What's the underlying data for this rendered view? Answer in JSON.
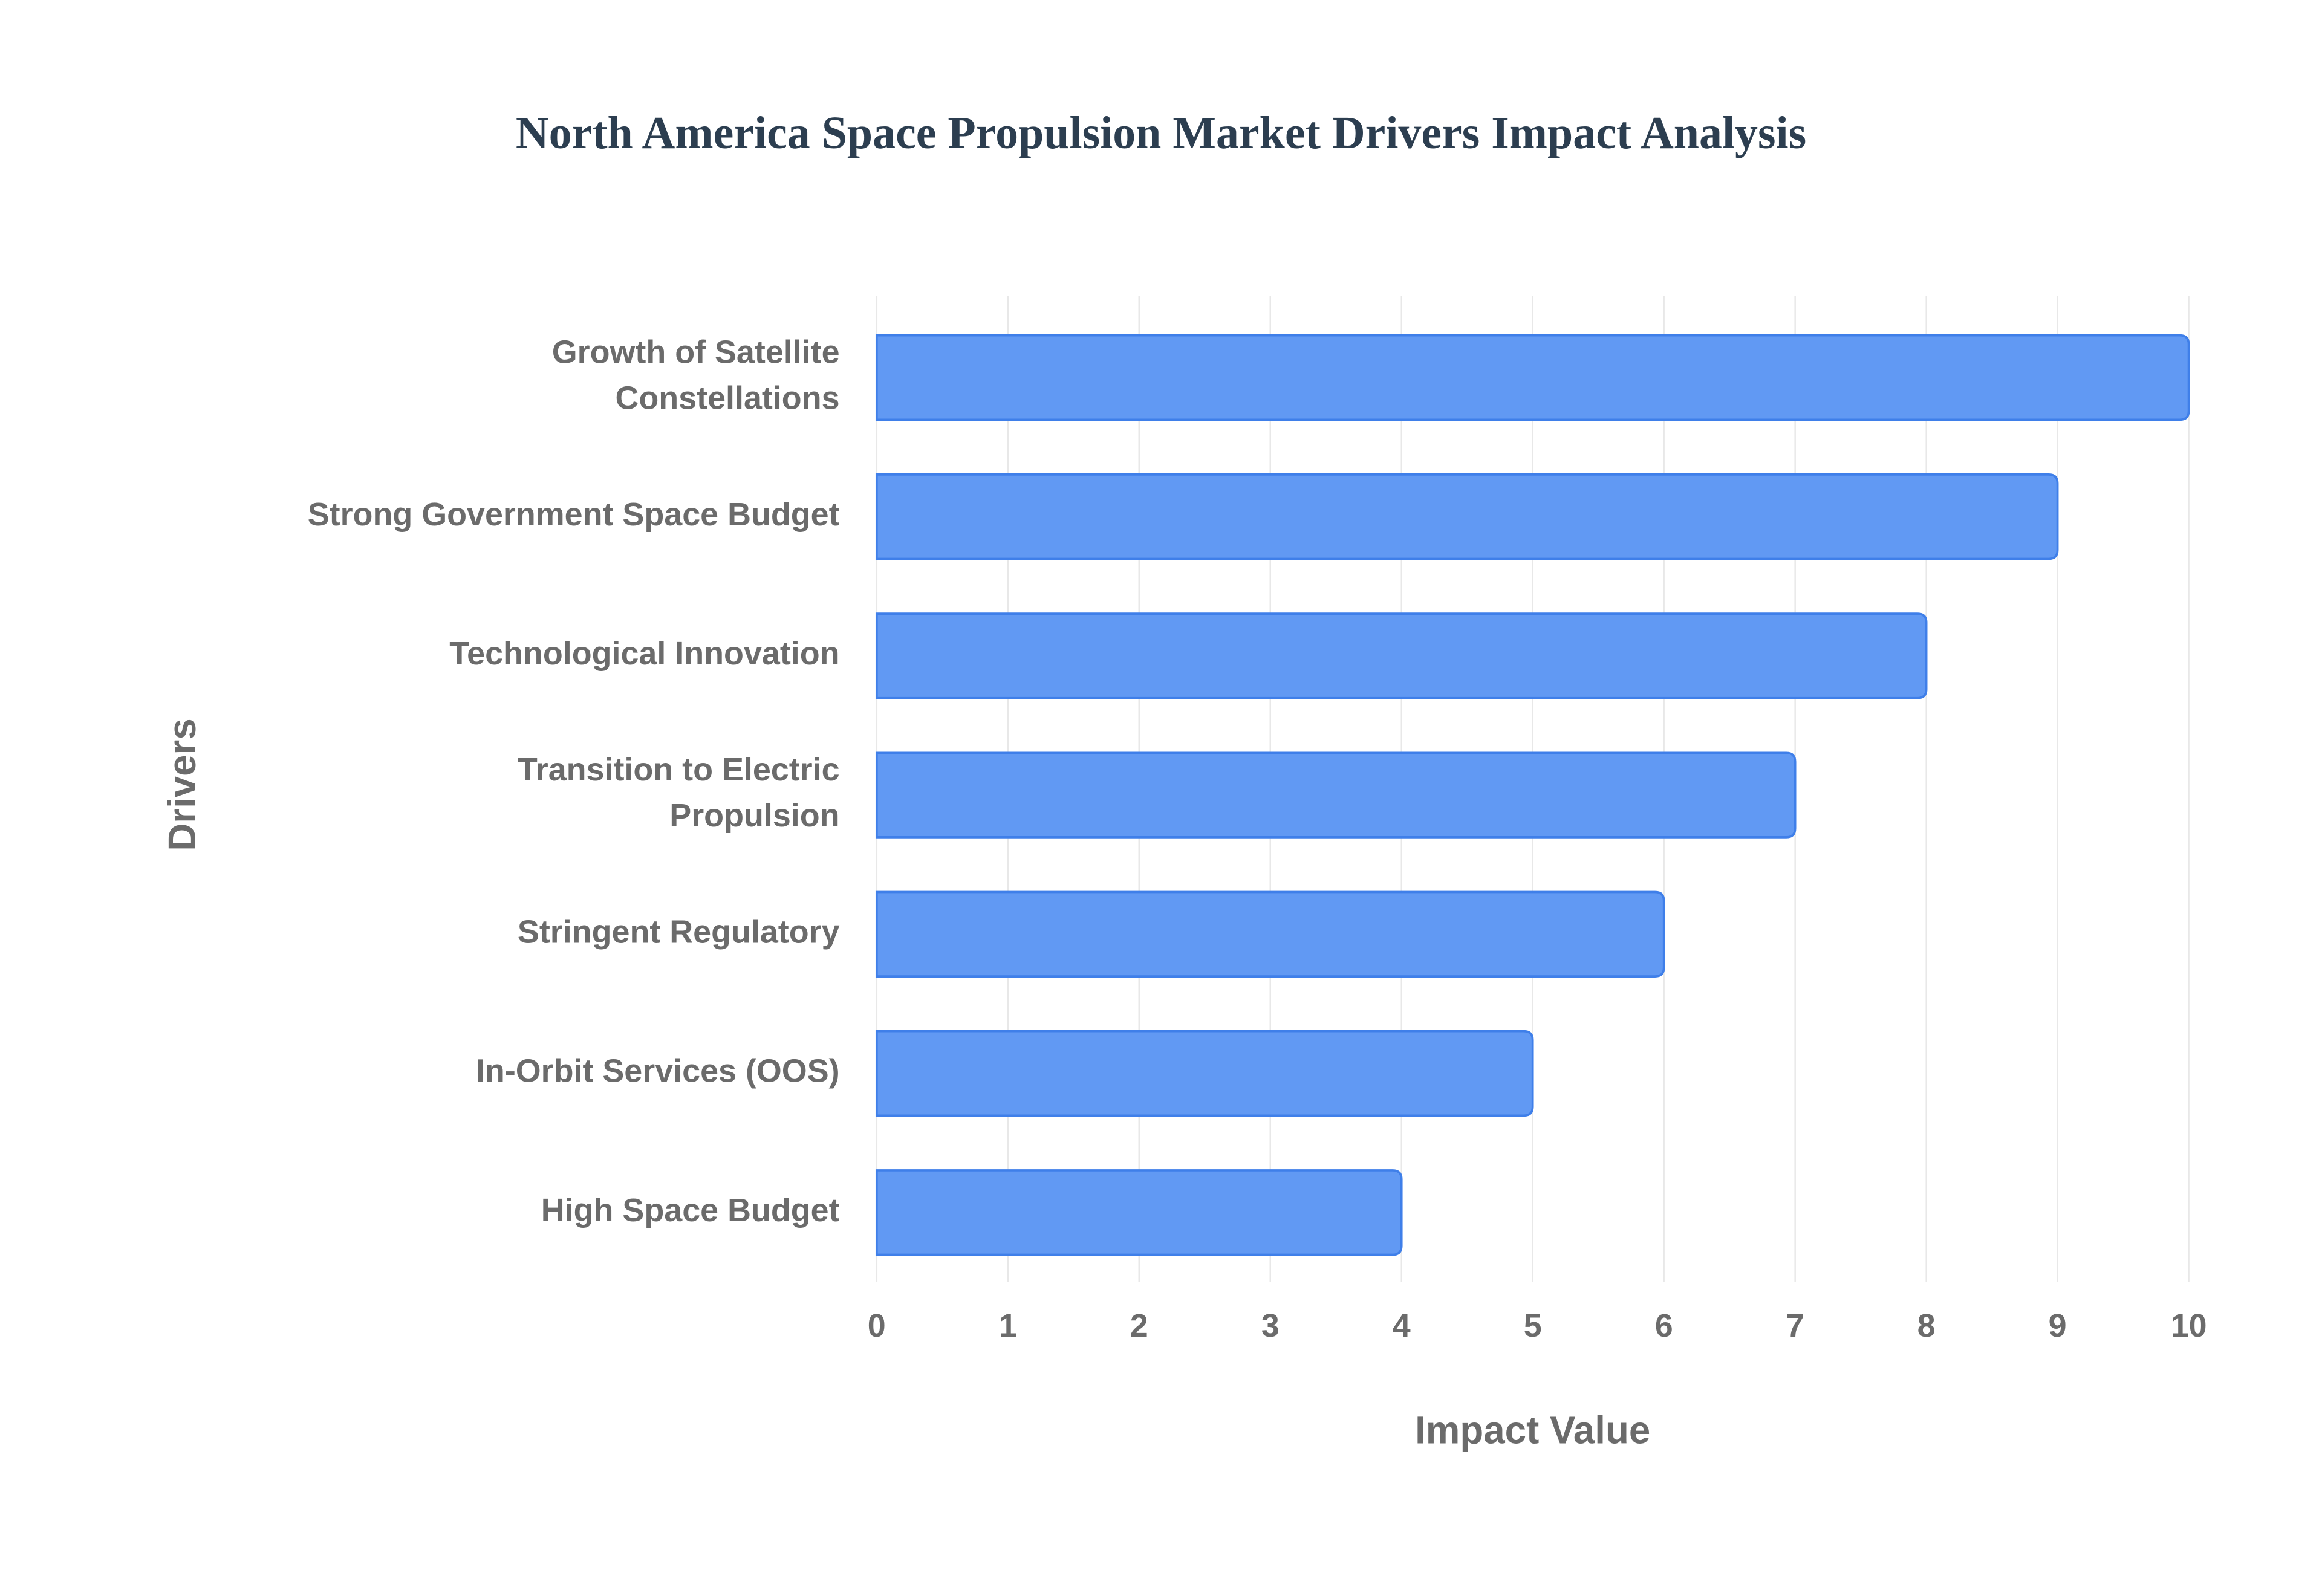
{
  "chart_data": {
    "type": "bar",
    "orientation": "horizontal",
    "title": "North America Space Propulsion Market Drivers Impact Analysis",
    "x_label": "Impact Value",
    "y_label": "Drivers",
    "categories": [
      "Growth of Satellite Constellations",
      "Strong Government Space Budget",
      "Technological Innovation",
      "Transition to Electric Propulsion",
      "Stringent Regulatory",
      "In-Orbit Services (OOS)",
      "High Space Budget"
    ],
    "values": [
      10,
      9,
      8,
      7,
      6,
      5,
      4
    ],
    "color": "#6199f3",
    "edge_color": "#3f7fe9",
    "xlim": [
      0,
      10
    ],
    "xticks": [
      0,
      1,
      2,
      3,
      4,
      5,
      6,
      7,
      8,
      9,
      10
    ],
    "grid": true
  }
}
